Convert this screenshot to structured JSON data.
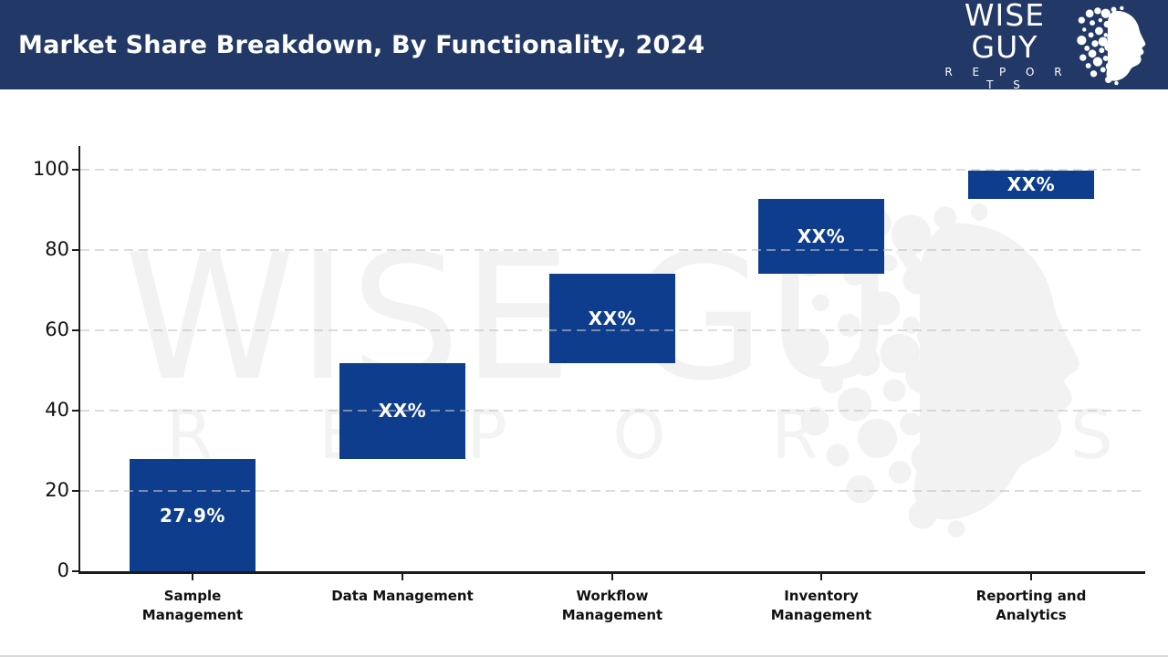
{
  "header": {
    "title": "Market Share Breakdown, By Functionality, 2024",
    "logo_primary": "WISE GUY",
    "logo_secondary": "R E P O R T S"
  },
  "watermark": {
    "primary": "WISE GUY",
    "secondary": "R E P O R T S"
  },
  "colors": {
    "header_bg": "#223967",
    "bar": "#0d3d8c",
    "title_text": "#ffffff",
    "axis": "#1c1c1c",
    "grid": "#c3c3c3",
    "value_label": "#ffffff",
    "watermark": "#f2f2f2"
  },
  "chart_data": {
    "type": "bar",
    "subtype": "waterfall",
    "title": "Market Share Breakdown, By Functionality, 2024",
    "categories": [
      "Sample Management",
      "Data Management",
      "Workflow Management",
      "Inventory Management",
      "Reporting and Analytics"
    ],
    "segments": [
      {
        "category": "Sample Management",
        "start": 0,
        "end": 27.9,
        "label": "27.9%"
      },
      {
        "category": "Data Management",
        "start": 27.9,
        "end": 51.9,
        "label": "XX%"
      },
      {
        "category": "Workflow Management",
        "start": 51.9,
        "end": 74.1,
        "label": "XX%"
      },
      {
        "category": "Inventory Management",
        "start": 74.1,
        "end": 92.7,
        "label": "XX%"
      },
      {
        "category": "Reporting and Analytics",
        "start": 92.7,
        "end": 99.8,
        "label": "XX%"
      }
    ],
    "ylim": [
      0,
      100
    ],
    "yticks": [
      0,
      20,
      40,
      60,
      80,
      100
    ],
    "xlabel": "",
    "ylabel": "",
    "grid": "dashed-horizontal",
    "legend": "none"
  }
}
